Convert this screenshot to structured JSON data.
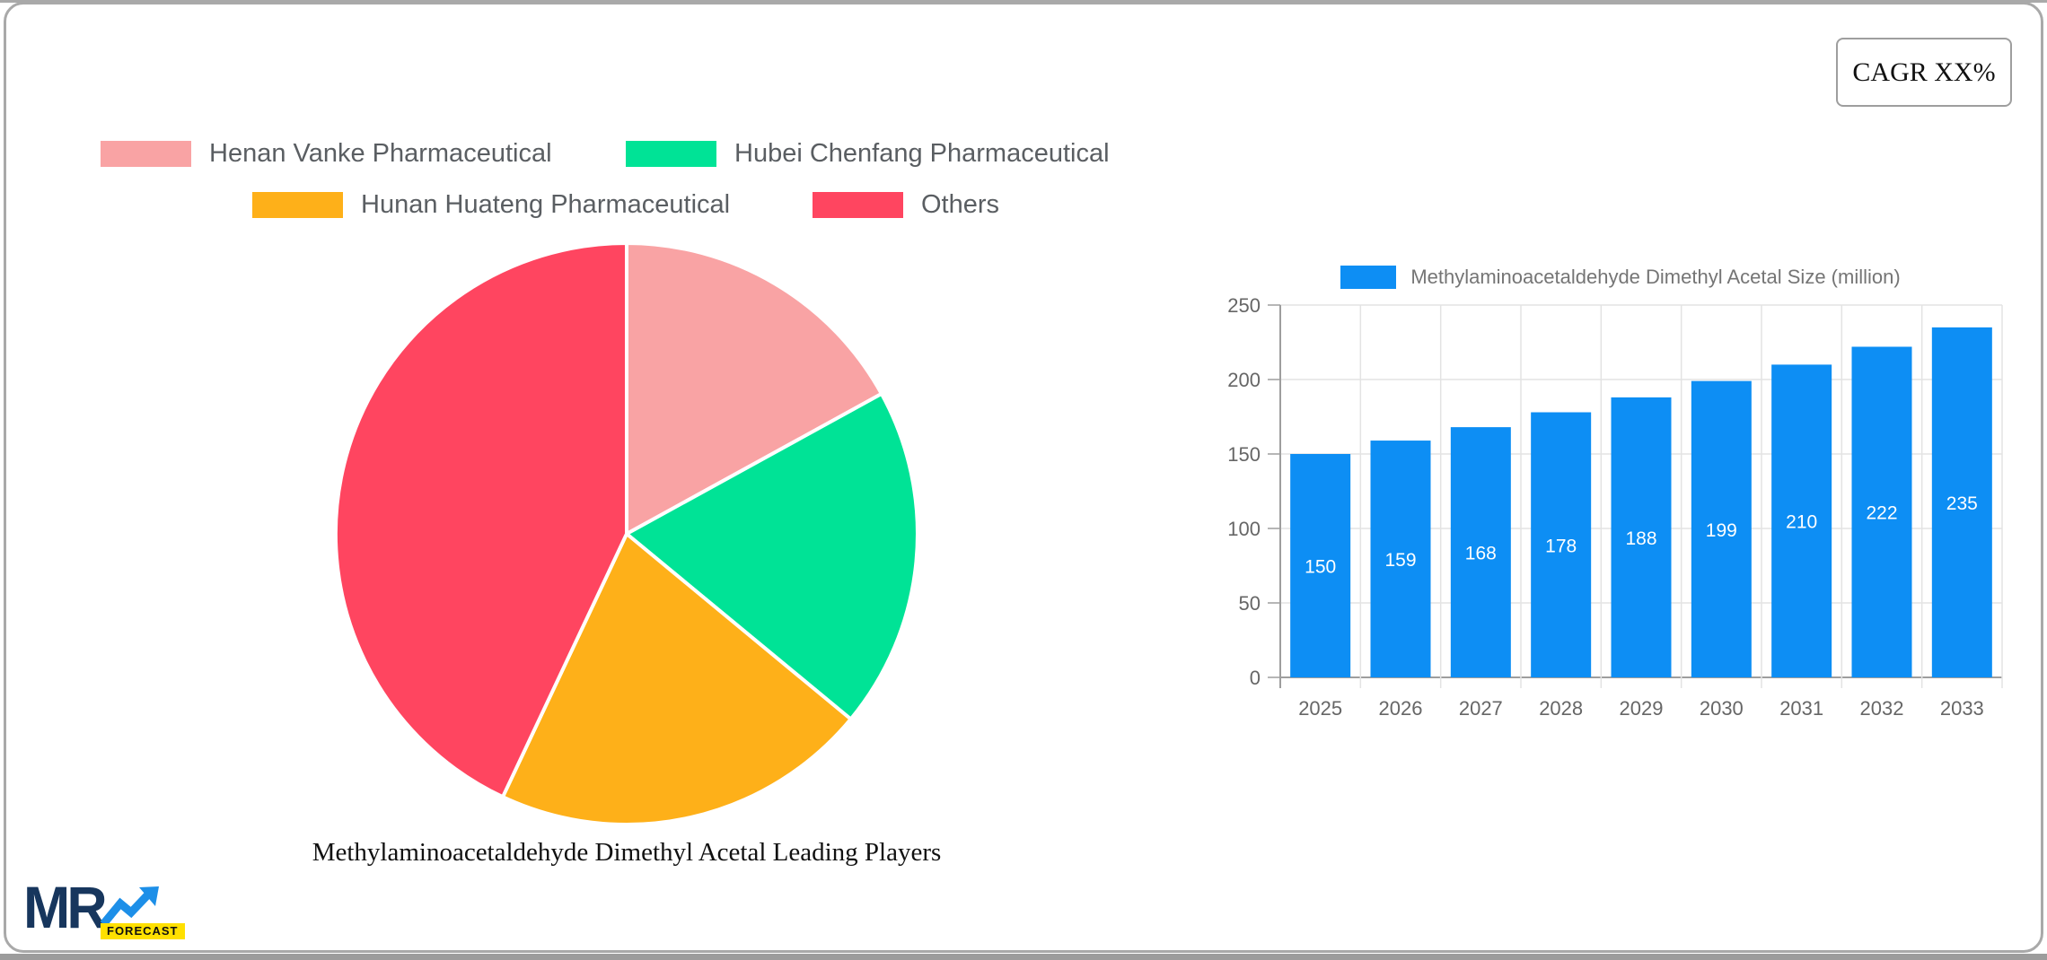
{
  "cagr_box": {
    "label": "CAGR XX%"
  },
  "logo": {
    "company": "MR",
    "tagline": "FORECAST"
  },
  "colors": {
    "bar_blue": "#0d8ef4",
    "pie_pink": "#F9A3A4",
    "pie_green": "#00E396",
    "pie_orange": "#FEB019",
    "pie_red": "#FF4560",
    "axis": "#9e9e9e",
    "grid": "#e3e3e3",
    "tick_label": "#666666",
    "bar_legend_text": "#757575",
    "pie_legend_text": "#5a5e62",
    "logo_navy": "#17365d",
    "logo_blue": "#1d8fe8",
    "logo_yellow": "#ffe000"
  },
  "chart_data": [
    {
      "type": "pie",
      "title": "Methylaminoacetaldehyde Dimethyl Acetal Leading Players",
      "labels": [
        "Henan Vanke Pharmaceutical",
        "Hubei Chenfang Pharmaceutical",
        "Hunan Huateng Pharmaceutical",
        "Others"
      ],
      "values": [
        17,
        19,
        21,
        43
      ],
      "colors": [
        "#F9A3A4",
        "#00E396",
        "#FEB019",
        "#FF4560"
      ],
      "start_angle_deg": 0,
      "direction": "clockwise",
      "legend_position": "top",
      "slice_border": "#ffffff"
    },
    {
      "type": "bar",
      "series_label": "Methylaminoacetaldehyde Dimethyl Acetal Size (million)",
      "categories": [
        "2025",
        "2026",
        "2027",
        "2028",
        "2029",
        "2030",
        "2031",
        "2032",
        "2033"
      ],
      "values": [
        150,
        159,
        168,
        178,
        188,
        199,
        210,
        222,
        235
      ],
      "ylim": [
        0,
        250
      ],
      "ytick_step": 50,
      "yticks": [
        0,
        50,
        100,
        150,
        200,
        250
      ],
      "grid": true,
      "legend_position": "top",
      "bar_color": "#0d8ef4",
      "value_label_style": "white, centered inside bar"
    }
  ]
}
